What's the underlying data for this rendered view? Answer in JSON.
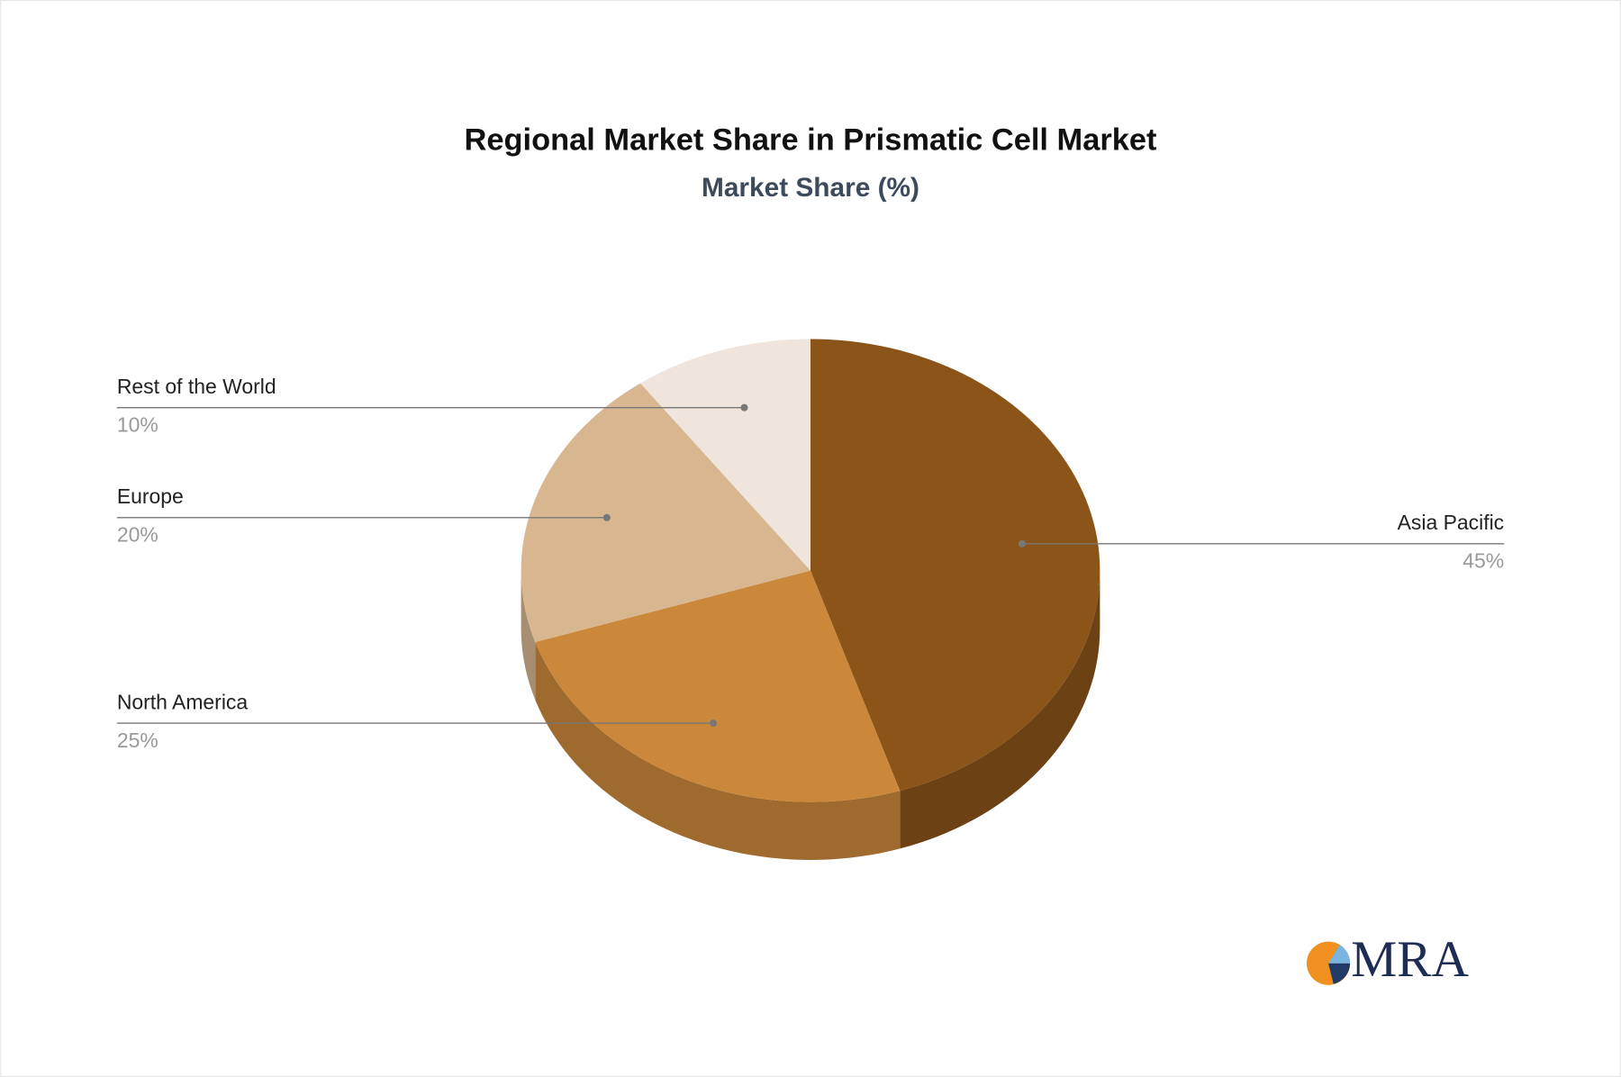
{
  "chart_data": {
    "type": "pie",
    "title": "Regional Market Share in Prismatic Cell Market",
    "subtitle": "Market Share (%)",
    "categories": [
      "Asia Pacific",
      "North America",
      "Europe",
      "Rest of the World"
    ],
    "values": [
      45,
      25,
      20,
      10
    ],
    "value_labels": [
      "45%",
      "25%",
      "20%",
      "10%"
    ],
    "colors": [
      "#8b5519",
      "#cb883b",
      "#d8b690",
      "#efe5dc"
    ]
  },
  "logo": {
    "text": "MRA"
  }
}
